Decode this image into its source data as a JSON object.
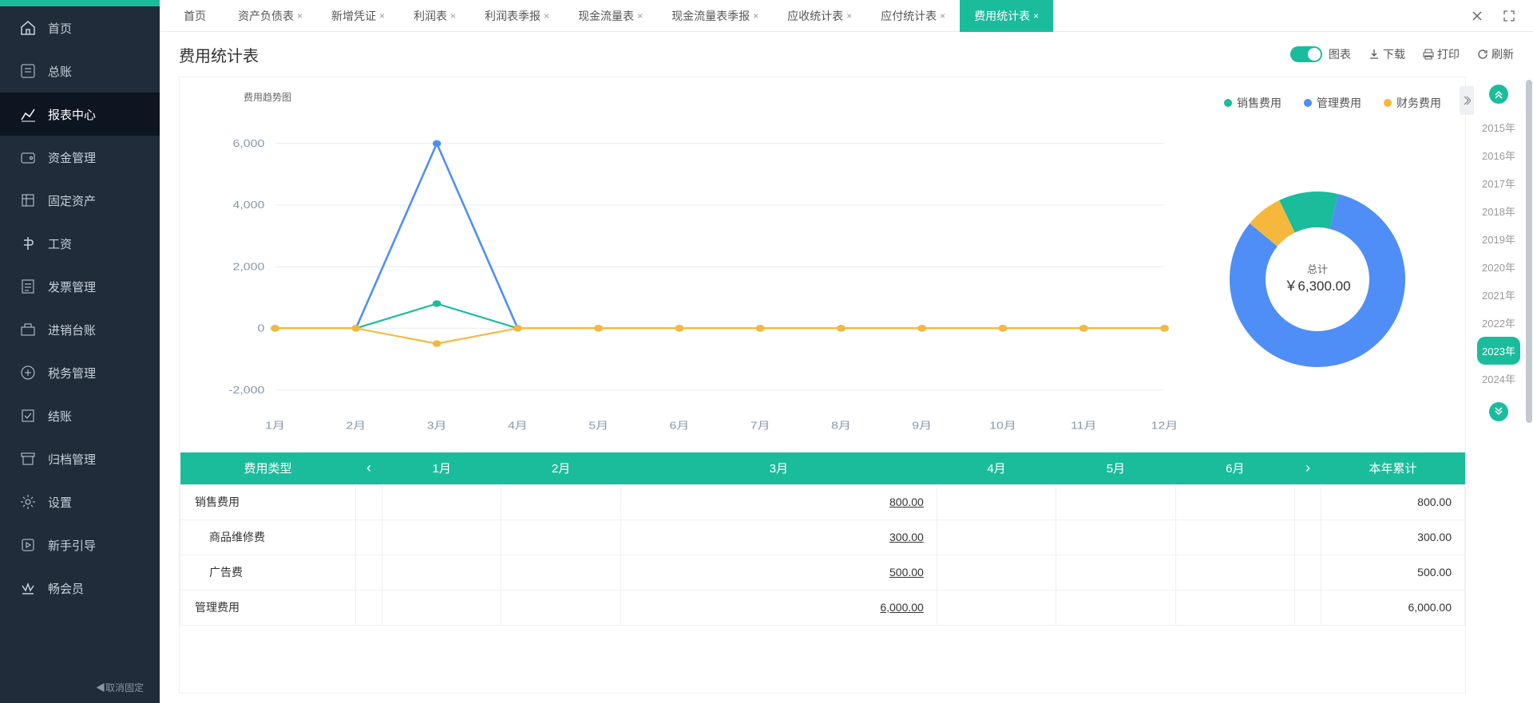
{
  "sidebar": {
    "items": [
      {
        "label": "首页",
        "icon": "home"
      },
      {
        "label": "总账",
        "icon": "ledger"
      },
      {
        "label": "报表中心",
        "icon": "chart",
        "active": true
      },
      {
        "label": "资金管理",
        "icon": "wallet"
      },
      {
        "label": "固定资产",
        "icon": "asset"
      },
      {
        "label": "工资",
        "icon": "salary"
      },
      {
        "label": "发票管理",
        "icon": "invoice"
      },
      {
        "label": "进销台账",
        "icon": "stock"
      },
      {
        "label": "税务管理",
        "icon": "tax"
      },
      {
        "label": "结账",
        "icon": "close-period"
      },
      {
        "label": "归档管理",
        "icon": "archive"
      },
      {
        "label": "设置",
        "icon": "gear"
      },
      {
        "label": "新手引导",
        "icon": "guide"
      },
      {
        "label": "畅会员",
        "icon": "vip"
      }
    ],
    "footer": "◀取消固定"
  },
  "tabs": {
    "items": [
      {
        "label": "首页",
        "closable": false
      },
      {
        "label": "资产负债表",
        "closable": true
      },
      {
        "label": "新增凭证",
        "closable": true
      },
      {
        "label": "利润表",
        "closable": true
      },
      {
        "label": "利润表季报",
        "closable": true
      },
      {
        "label": "现金流量表",
        "closable": true
      },
      {
        "label": "现金流量表季报",
        "closable": true
      },
      {
        "label": "应收统计表",
        "closable": true
      },
      {
        "label": "应付统计表",
        "closable": true
      },
      {
        "label": "费用统计表",
        "closable": true,
        "active": true
      }
    ]
  },
  "page": {
    "title": "费用统计表",
    "toggle_label": "图表",
    "download_label": "下载",
    "print_label": "打印",
    "refresh_label": "刷新"
  },
  "chart": {
    "title": "费用趋势图",
    "legend": [
      {
        "label": "销售费用",
        "color": "#1abc9c"
      },
      {
        "label": "管理费用",
        "color": "#4f8ef7"
      },
      {
        "label": "财务费用",
        "color": "#f5b83d"
      }
    ],
    "line": {
      "type": "line",
      "x_labels": [
        "1月",
        "2月",
        "3月",
        "4月",
        "5月",
        "6月",
        "7月",
        "8月",
        "9月",
        "10月",
        "11月",
        "12月"
      ],
      "y_ticks": [
        -2000,
        0,
        2000,
        4000,
        6000
      ],
      "y_tick_labels": [
        "-2,000",
        "0",
        "2,000",
        "4,000",
        "6,000"
      ],
      "ylim": [
        -2500,
        6500
      ],
      "series": [
        {
          "name": "销售费用",
          "color": "#1abc9c",
          "values": [
            0,
            0,
            800,
            0,
            0,
            0,
            0,
            0,
            0,
            0,
            0,
            0
          ]
        },
        {
          "name": "管理费用",
          "color": "#4f8ef7",
          "values": [
            0,
            0,
            6000,
            0,
            0,
            0,
            0,
            0,
            0,
            0,
            0,
            0
          ]
        },
        {
          "name": "财务费用",
          "color": "#f5b83d",
          "values": [
            0,
            0,
            -500,
            0,
            0,
            0,
            0,
            0,
            0,
            0,
            0,
            0
          ]
        }
      ],
      "marker_radius": 4,
      "line_width": 2,
      "grid_color": "#e8ebef",
      "axis_color": "#9aa3af",
      "label_color": "#8a96a6",
      "label_fontsize": 12
    },
    "donut": {
      "type": "donut",
      "center_label": "总计",
      "center_value": "￥6,300.00",
      "total": 6300,
      "slices": [
        {
          "label": "销售费用",
          "value": 800,
          "color": "#1abc9c"
        },
        {
          "label": "管理费用",
          "value": 6000,
          "color": "#4f8ef7"
        },
        {
          "label": "财务费用",
          "value": -500,
          "color": "#f5b83d"
        }
      ],
      "inner_radius": 65,
      "outer_radius": 110,
      "background_color": "#ffffff"
    }
  },
  "table": {
    "type_header": "费用类型",
    "month_headers": [
      "1月",
      "2月",
      "3月",
      "4月",
      "5月",
      "6月"
    ],
    "total_header": "本年累计",
    "rows": [
      {
        "label": "销售费用",
        "indent": 0,
        "cells": [
          "",
          "",
          "800.00",
          "",
          "",
          ""
        ],
        "total": "800.00"
      },
      {
        "label": "商品维修费",
        "indent": 1,
        "cells": [
          "",
          "",
          "300.00",
          "",
          "",
          ""
        ],
        "total": "300.00"
      },
      {
        "label": "广告费",
        "indent": 1,
        "cells": [
          "",
          "",
          "500.00",
          "",
          "",
          ""
        ],
        "total": "500.00"
      },
      {
        "label": "管理费用",
        "indent": 0,
        "cells": [
          "",
          "",
          "6,000.00",
          "",
          "",
          ""
        ],
        "total": "6,000.00"
      }
    ]
  },
  "years": {
    "items": [
      "2015年",
      "2016年",
      "2017年",
      "2018年",
      "2019年",
      "2020年",
      "2021年",
      "2022年",
      "2023年",
      "2024年"
    ],
    "active": "2023年"
  },
  "colors": {
    "accent": "#1abc9c",
    "sidebar_bg": "#202c3a",
    "sidebar_active": "#0d1520"
  }
}
